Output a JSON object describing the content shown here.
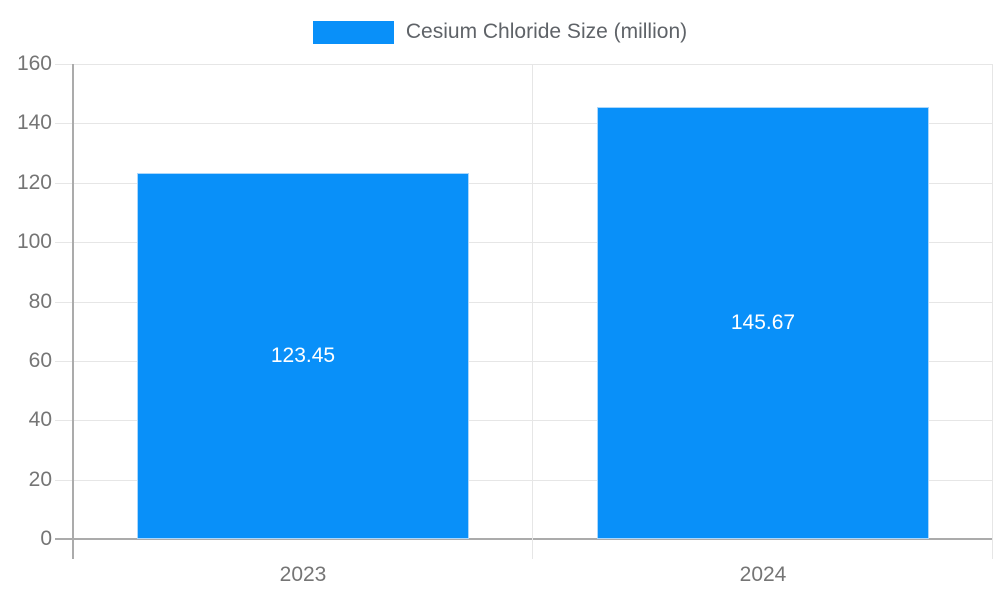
{
  "legend": {
    "label": "Cesium Chloride Size (million)"
  },
  "chart_data": {
    "type": "bar",
    "title": "Cesium Chloride Size (million)",
    "categories": [
      "2023",
      "2024"
    ],
    "series": [
      {
        "name": "Cesium Chloride Size (million)",
        "values": [
          123.45,
          145.67
        ]
      }
    ],
    "value_labels": [
      "123.45",
      "145.67"
    ],
    "xlabel": "",
    "ylabel": "",
    "ylim": [
      0,
      160
    ],
    "yticks": [
      0,
      20,
      40,
      60,
      80,
      100,
      120,
      140,
      160
    ],
    "grid": true,
    "legend_position": "top-center",
    "colors": {
      "bar": "#0990f9",
      "bar_border": "#abd7fb",
      "grid": "#e6e6e6",
      "axis": "#ababab",
      "tick_label": "#757575",
      "legend_text": "#5f6368",
      "value_label": "#ffffff",
      "background": "#ffffff"
    }
  }
}
